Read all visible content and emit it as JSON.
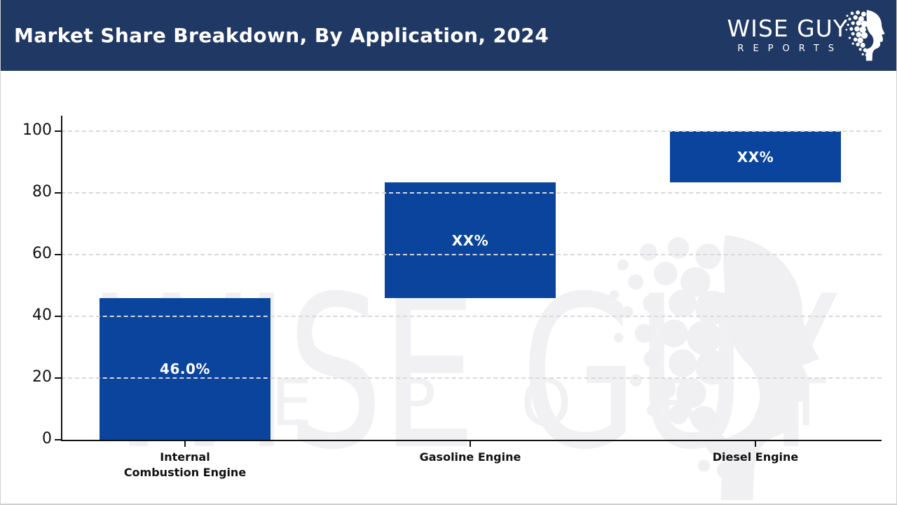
{
  "header": {
    "title": "Market Share Breakdown, By Application, 2024",
    "bg_color": "#203864",
    "logo": {
      "line1": "WISE GUY",
      "line2": "REPORTS"
    }
  },
  "watermark": {
    "line1": "WISE GUY",
    "line2": "R E P O R T S"
  },
  "chart_data": {
    "type": "bar",
    "subtype": "waterfall-stacked-segments",
    "title": "Market Share Breakdown, By Application, 2024",
    "categories": [
      "Internal\nCombustion Engine",
      "Gasoline Engine",
      "Diesel Engine"
    ],
    "bars": [
      {
        "category": "Internal\nCombustion Engine",
        "start": 0,
        "end": 46,
        "label": "46.0%"
      },
      {
        "category": "Gasoline Engine",
        "start": 46,
        "end": 83.3,
        "label": "XX%"
      },
      {
        "category": "Diesel Engine",
        "start": 83.3,
        "end": 100,
        "label": "XX%"
      }
    ],
    "xlabel": "",
    "ylabel": "",
    "ylim": [
      0,
      105
    ],
    "yticks": [
      0,
      20,
      40,
      60,
      80,
      100
    ],
    "grid": "horizontal-dashed",
    "legend": "none",
    "bar_color": "#0a449c",
    "bar_label_color": "#ffffff",
    "axis_color": "#111111",
    "grid_color": "#d9d9d9"
  }
}
